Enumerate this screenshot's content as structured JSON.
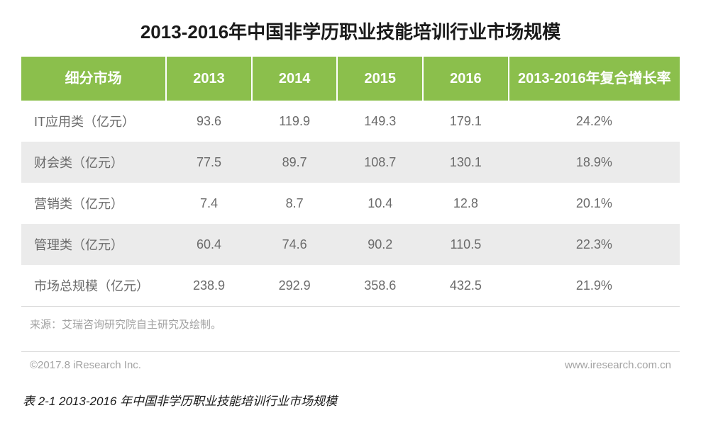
{
  "title": "2013-2016年中国非学历职业技能培训行业市场规模",
  "table": {
    "type": "table",
    "header_bg": "#8bbf4c",
    "header_text_color": "#ffffff",
    "row_odd_bg": "#ffffff",
    "row_even_bg": "#ebebeb",
    "cell_text_color": "#6b6b6b",
    "header_fontsize": 20,
    "cell_fontsize": 18,
    "columns": [
      {
        "label": "细分市场",
        "width_pct": 22
      },
      {
        "label": "2013",
        "width_pct": 13
      },
      {
        "label": "2014",
        "width_pct": 13
      },
      {
        "label": "2015",
        "width_pct": 13
      },
      {
        "label": "2016",
        "width_pct": 13
      },
      {
        "label": "2013-2016年复合增长率",
        "width_pct": 26
      }
    ],
    "rows": [
      {
        "segment": "IT应用类（亿元）",
        "y2013": "93.6",
        "y2014": "119.9",
        "y2015": "149.3",
        "y2016": "179.1",
        "cagr": "24.2%"
      },
      {
        "segment": "财会类（亿元）",
        "y2013": "77.5",
        "y2014": "89.7",
        "y2015": "108.7",
        "y2016": "130.1",
        "cagr": "18.9%"
      },
      {
        "segment": "营销类（亿元）",
        "y2013": "7.4",
        "y2014": "8.7",
        "y2015": "10.4",
        "y2016": "12.8",
        "cagr": "20.1%"
      },
      {
        "segment": "管理类（亿元）",
        "y2013": "60.4",
        "y2014": "74.6",
        "y2015": "90.2",
        "y2016": "110.5",
        "cagr": "22.3%"
      },
      {
        "segment": "市场总规模（亿元）",
        "y2013": "238.9",
        "y2014": "292.9",
        "y2015": "358.6",
        "y2016": "432.5",
        "cagr": "21.9%"
      }
    ]
  },
  "source": "来源：艾瑞咨询研究院自主研究及绘制。",
  "copyright": "©2017.8 iResearch Inc.",
  "website": "www.iresearch.com.cn",
  "caption": "表 2-1 2013-2016 年中国非学历职业技能培训行业市场规模",
  "footer_text_color": "#a3a3a3",
  "footer_border_color": "#d9d9d9"
}
